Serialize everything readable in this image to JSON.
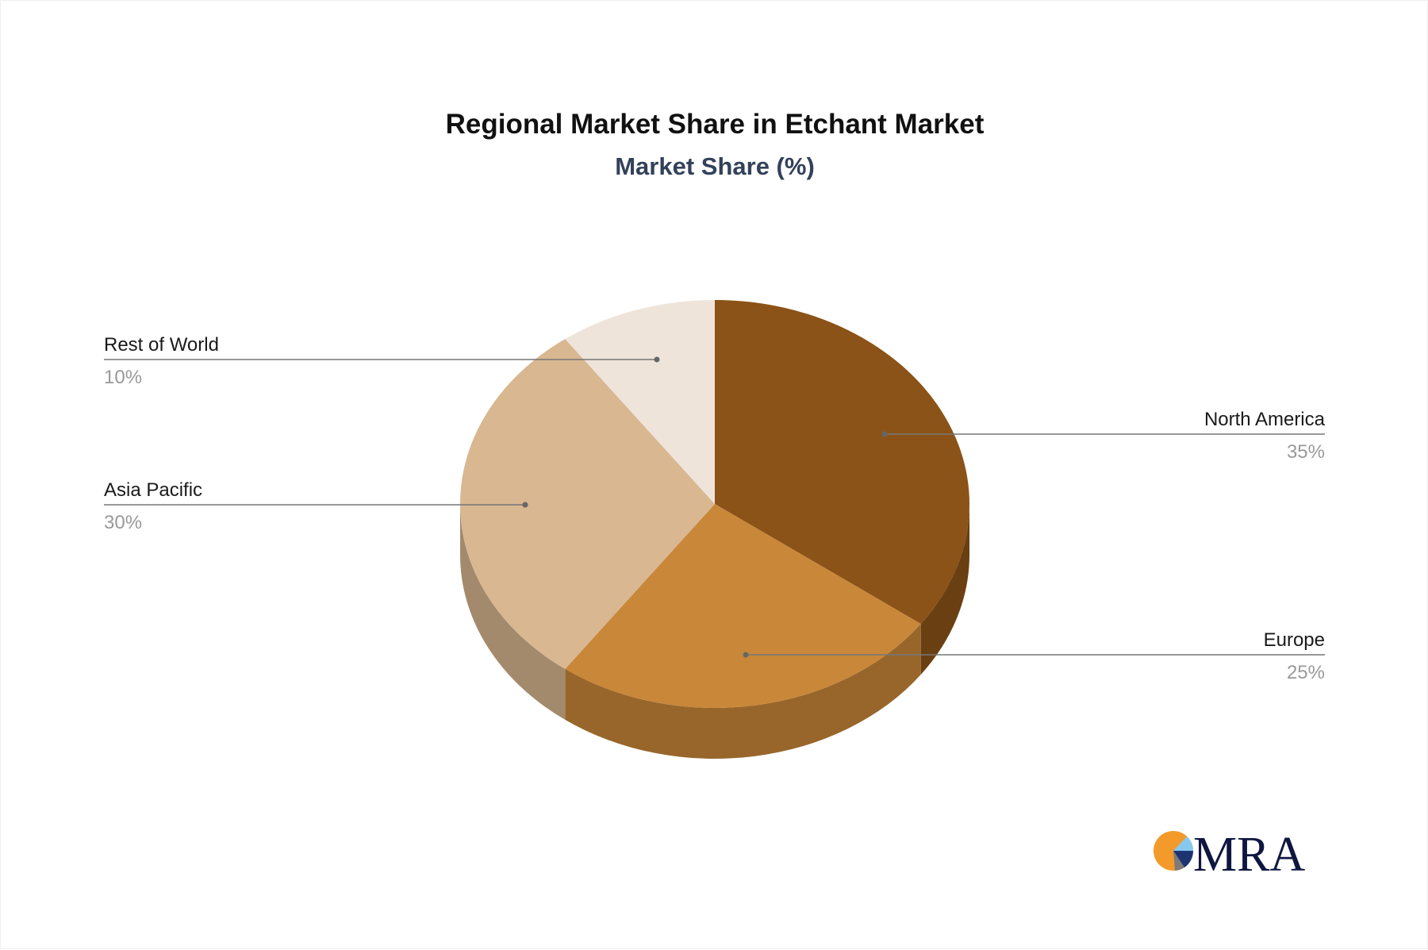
{
  "chart_data": {
    "type": "pie",
    "title": "Regional Market Share in Etchant Market",
    "subtitle": "Market Share (%)",
    "slices": [
      {
        "label": "North America",
        "value": 35,
        "value_label": "35%",
        "color": "#8B5318",
        "side_color": "#6A3F12"
      },
      {
        "label": "Europe",
        "value": 25,
        "value_label": "25%",
        "color": "#C98739",
        "side_color": "#98662B"
      },
      {
        "label": "Asia Pacific",
        "value": 30,
        "value_label": "30%",
        "color": "#D8B791",
        "side_color": "#A48A6D"
      },
      {
        "label": "Rest of World",
        "value": 10,
        "value_label": "10%",
        "color": "#EFE4DA",
        "side_color": "#C9BDB1"
      }
    ],
    "style": "3d"
  },
  "logo": {
    "text": "MRA"
  }
}
